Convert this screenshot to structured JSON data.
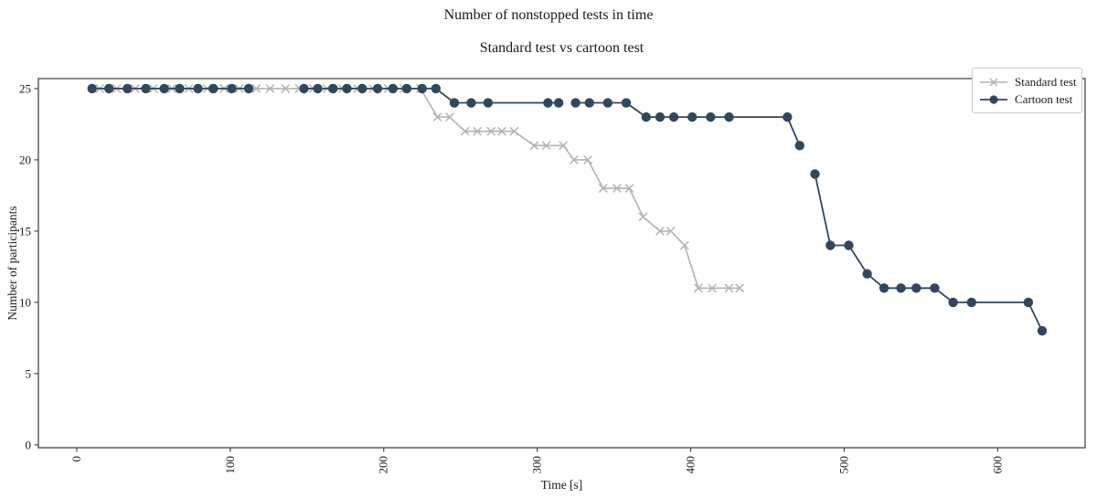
{
  "chart_data": {
    "type": "line",
    "suptitle": "Number of nonstopped tests in time",
    "title": "Standard test vs cartoon test",
    "xlabel": "Time [s]",
    "ylabel": "Number of participants",
    "xlim": [
      -25,
      657
    ],
    "ylim": [
      -0.2,
      25.7
    ],
    "xticks": [
      0,
      100,
      200,
      300,
      400,
      500,
      600
    ],
    "yticks": [
      0,
      5,
      10,
      15,
      20,
      25
    ],
    "xtick_rotation": 90,
    "grid": false,
    "legend_position": "upper right",
    "colors": {
      "axis": "#3a3a3a",
      "tick_text": "#1a1a1a",
      "legend_border": "#c9c9c9"
    },
    "series": [
      {
        "name": "Standard test",
        "color": "#b3b3b3",
        "marker": "x",
        "line_width": 1.6,
        "segments": [
          [
            [
              15,
              25
            ],
            [
              26,
              25
            ],
            [
              38,
              25
            ],
            [
              50,
              25
            ],
            [
              62,
              25
            ],
            [
              73,
              25
            ],
            [
              85,
              25
            ],
            [
              96,
              25
            ],
            [
              106,
              25
            ],
            [
              117,
              25
            ],
            [
              126,
              25
            ],
            [
              136,
              25
            ],
            [
              145,
              25
            ],
            [
              154,
              25
            ],
            [
              163,
              25
            ],
            [
              173,
              25
            ],
            [
              183,
              25
            ],
            [
              193,
              25
            ],
            [
              203,
              25
            ],
            [
              213,
              25
            ],
            [
              224,
              25
            ],
            [
              235,
              23
            ],
            [
              243,
              23
            ],
            [
              253,
              22
            ],
            [
              261,
              22
            ],
            [
              270,
              22
            ],
            [
              277,
              22
            ],
            [
              285,
              22
            ],
            [
              298,
              21
            ],
            [
              306,
              21
            ],
            [
              317,
              21
            ],
            [
              324,
              20
            ],
            [
              333,
              20
            ],
            [
              343,
              18
            ],
            [
              352,
              18
            ],
            [
              360,
              18
            ],
            [
              369,
              16
            ],
            [
              380,
              15
            ],
            [
              387,
              15
            ],
            [
              396,
              14
            ],
            [
              405,
              11
            ],
            [
              414,
              11
            ],
            [
              425,
              11
            ],
            [
              432,
              11
            ]
          ]
        ]
      },
      {
        "name": "Cartoon test",
        "color": "#33475c",
        "marker": "circle",
        "line_width": 1.8,
        "segments": [
          [
            [
              10,
              25
            ],
            [
              21,
              25
            ],
            [
              33,
              25
            ],
            [
              45,
              25
            ],
            [
              57,
              25
            ],
            [
              67,
              25
            ],
            [
              79,
              25
            ],
            [
              89,
              25
            ],
            [
              101,
              25
            ],
            [
              112,
              25
            ]
          ],
          [
            [
              148,
              25
            ],
            [
              157,
              25
            ],
            [
              167,
              25
            ],
            [
              176,
              25
            ],
            [
              186,
              25
            ],
            [
              196,
              25
            ],
            [
              206,
              25
            ],
            [
              215,
              25
            ],
            [
              225,
              25
            ],
            [
              234,
              25
            ],
            [
              246,
              24
            ],
            [
              257,
              24
            ],
            [
              268,
              24
            ],
            [
              307,
              24
            ],
            [
              314,
              24
            ]
          ],
          [
            [
              325,
              24
            ],
            [
              334,
              24
            ],
            [
              346,
              24
            ],
            [
              358,
              24
            ],
            [
              371,
              23
            ],
            [
              380,
              23
            ],
            [
              389,
              23
            ],
            [
              401,
              23
            ],
            [
              413,
              23
            ],
            [
              425,
              23
            ],
            [
              463,
              23
            ],
            [
              471,
              21
            ]
          ],
          [
            [
              481,
              19
            ],
            [
              491,
              14
            ],
            [
              503,
              14
            ],
            [
              515,
              12
            ],
            [
              526,
              11
            ],
            [
              537,
              11
            ],
            [
              547,
              11
            ],
            [
              559,
              11
            ],
            [
              571,
              10
            ],
            [
              583,
              10
            ],
            [
              620,
              10
            ],
            [
              629,
              8
            ]
          ]
        ]
      }
    ]
  }
}
